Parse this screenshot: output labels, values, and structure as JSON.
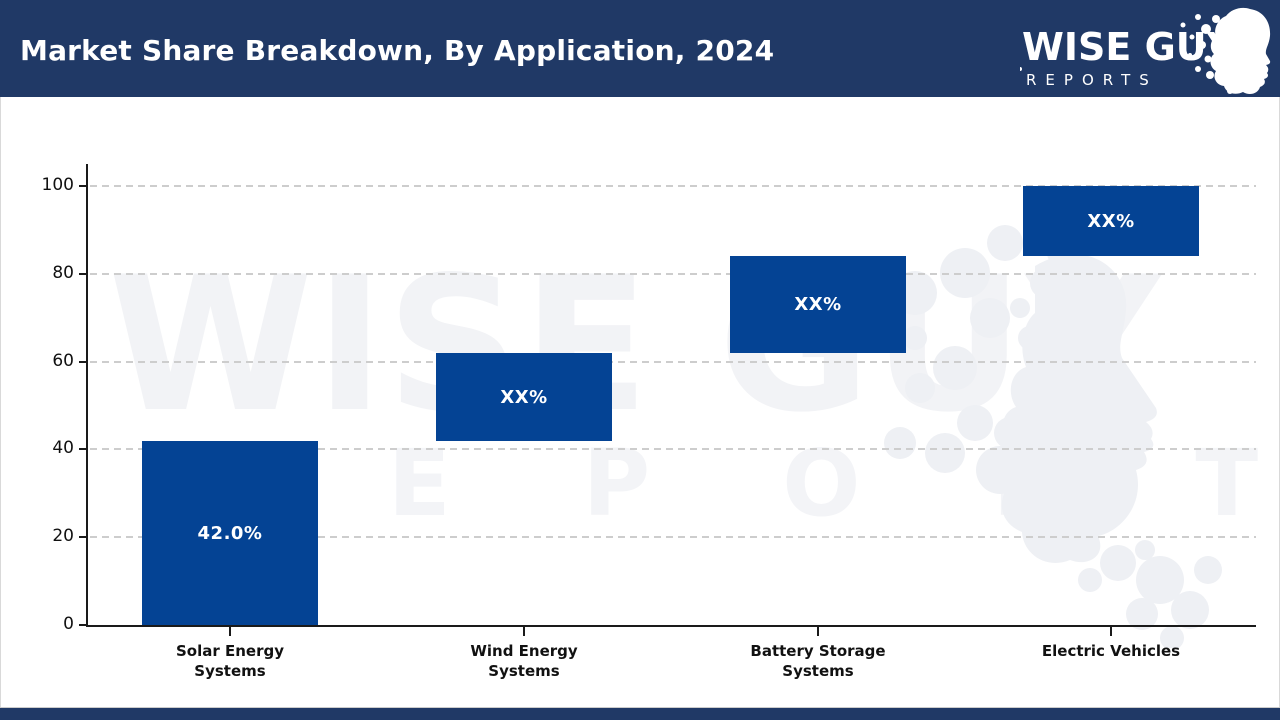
{
  "header": {
    "title": "Market Share Breakdown, By Application, 2024",
    "logo": {
      "line1": "WISE GUY",
      "line2": "R E P O R T S"
    }
  },
  "watermark": {
    "line1": "WISE GUY",
    "line2": "R E P O R T S"
  },
  "footer": {},
  "chart_data": {
    "type": "bar",
    "subtype": "waterfall",
    "title": "Market Share Breakdown, By Application, 2024",
    "categories": [
      "Solar Energy\nSystems",
      "Wind Energy\nSystems",
      "Battery Storage\nSystems",
      "Electric Vehicles"
    ],
    "bars": [
      {
        "category": "Solar Energy Systems",
        "start": 0,
        "end": 42,
        "value": 42.0,
        "label": "42.0%"
      },
      {
        "category": "Wind Energy Systems",
        "start": 42,
        "end": 62,
        "value": 20,
        "label": "XX%"
      },
      {
        "category": "Battery Storage Systems",
        "start": 62,
        "end": 84,
        "value": 22,
        "label": "XX%"
      },
      {
        "category": "Electric Vehicles",
        "start": 84,
        "end": 100,
        "value": 16,
        "label": "XX%"
      }
    ],
    "y_ticks": [
      0,
      20,
      40,
      60,
      80,
      100
    ],
    "ylim": [
      0,
      105
    ],
    "xlabel": "",
    "ylabel": "",
    "legend": "none",
    "grid": "horizontal-dashed"
  },
  "colors": {
    "header_bg": "#203966",
    "footer_bg": "#203966",
    "bar": "#044394",
    "bar_label": "#ffffff",
    "grid": "#cdcdcd",
    "axis": "#1a1a1a",
    "watermark": "#f2f3f6",
    "title_text": "#ffffff"
  }
}
